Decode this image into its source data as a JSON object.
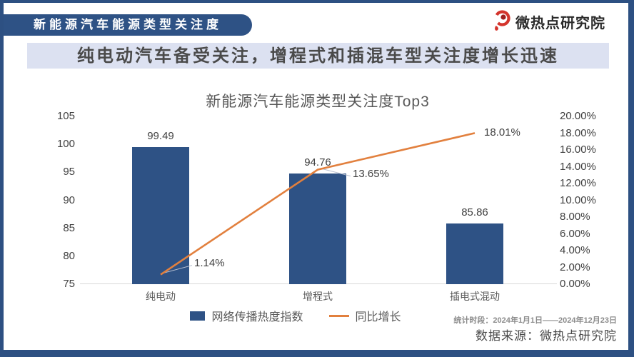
{
  "header": {
    "title": "新能源汽车能源类型关注度"
  },
  "logo": {
    "text": "微热点研究院",
    "icon": "weibo-eye-icon",
    "icon_color": "#d4342c"
  },
  "banner": {
    "text": "纯电动汽车备受关注，增程式和插混车型关注度增长迅速"
  },
  "footer": {
    "period": "统计时段：2024年1月1日——2024年12月23日",
    "source": "数据来源：微热点研究院"
  },
  "colors": {
    "primary_blue": "#2e5285",
    "frame_blue": "#2d5082",
    "accent_orange": "#e2803e",
    "banner_bg": "#dce1f1",
    "text_dark": "#404040",
    "text_gray": "#595959"
  },
  "chart_data": {
    "type": "combo",
    "title": "新能源汽车能源类型关注度Top3",
    "categories": [
      "纯电动",
      "增程式",
      "插电式混动"
    ],
    "series": [
      {
        "name": "网络传播热度指数",
        "type": "bar",
        "axis": "left",
        "values": [
          99.49,
          94.76,
          85.86
        ]
      },
      {
        "name": "同比增长",
        "type": "line",
        "axis": "right",
        "values": [
          1.14,
          13.65,
          18.01
        ],
        "unit": "%"
      }
    ],
    "left_axis": {
      "min": 75,
      "max": 105,
      "step": 5
    },
    "right_axis": {
      "min": 0,
      "max": 20,
      "step": 2,
      "decimals": 2,
      "suffix": "%"
    },
    "legend_position": "bottom",
    "gridlines": false
  }
}
